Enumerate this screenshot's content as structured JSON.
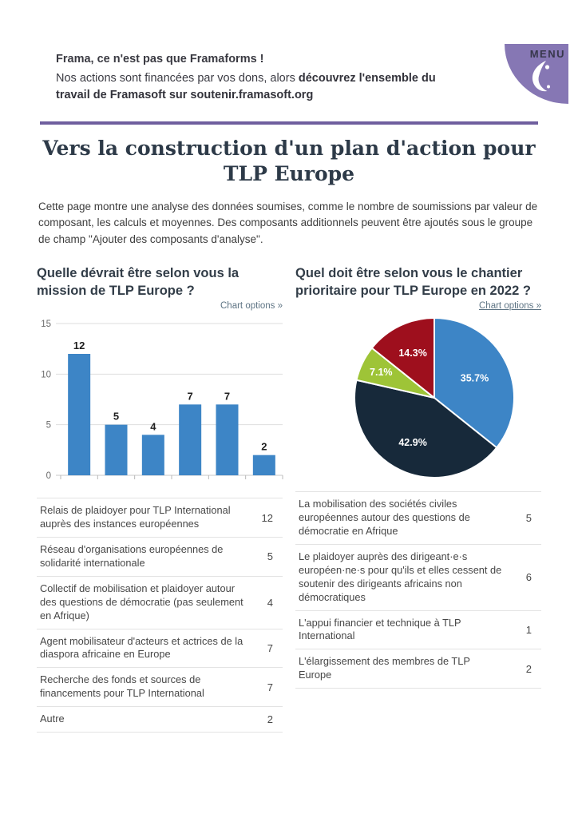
{
  "header": {
    "tagline_bold": "Frama, ce n'est pas que Framaforms !",
    "tagline2_normal": "Nos actions sont financées par vos dons, alors ",
    "tagline2_bold": "découvrez l'ensemble du travail de Framasoft sur soutenir.framasoft.org",
    "menu_label": "MENU",
    "menu_color": "#8677b4",
    "divider_color": "#6f5f9e"
  },
  "page": {
    "title": "Vers la construction d'un plan d'action pour TLP Europe",
    "description": "Cette page montre une analyse des données soumises, comme le nombre de soumissions par valeur de composant, les calculs et moyennes. Des composants additionnels peuvent être ajoutés sous le groupe de champ \"Ajouter des composants d'analyse\"."
  },
  "left_panel": {
    "question": "Quelle dévrait être selon vous la mission de TLP Europe ?",
    "chart_options_label": "Chart options »",
    "table": [
      {
        "label": "Relais de plaidoyer pour TLP International auprès des instances européennes",
        "value": 12
      },
      {
        "label": "Réseau d'organisations européennes de solidarité internationale",
        "value": 5
      },
      {
        "label": "Collectif de mobilisation et plaidoyer autour des questions de démocratie (pas seulement en Afrique)",
        "value": 4
      },
      {
        "label": "Agent mobilisateur d'acteurs et actrices de la diaspora africaine en Europe",
        "value": 7
      },
      {
        "label": "Recherche des fonds et sources de financements pour TLP International",
        "value": 7
      },
      {
        "label": "Autre",
        "value": 2
      }
    ]
  },
  "right_panel": {
    "question": "Quel doit être selon vous le chantier prioritaire pour TLP Europe en 2022 ?",
    "chart_options_label": "Chart options »",
    "table": [
      {
        "label": "La mobilisation des sociétés civiles européennes autour des questions de démocratie en Afrique",
        "value": 5
      },
      {
        "label": "Le plaidoyer auprès des dirigeant·e·s européen·ne·s pour qu'ils et elles cessent de soutenir des dirigeants africains non démocratiques",
        "value": 6
      },
      {
        "label": "L'appui financier et technique à TLP International",
        "value": 1
      },
      {
        "label": "L'élargissement des membres de TLP Europe",
        "value": 2
      }
    ]
  },
  "chart_data": [
    {
      "type": "bar",
      "title": "Quelle dévrait être selon vous la mission de TLP Europe ?",
      "categories": [
        "Relais de plaidoyer pour TLP International auprès des instances européennes",
        "Réseau d'organisations européennes de solidarité internationale",
        "Collectif de mobilisation et plaidoyer autour des questions de démocratie (pas seulement en Afrique)",
        "Agent mobilisateur d'acteurs et actrices de la diaspora africaine en Europe",
        "Recherche des fonds et sources de financements pour TLP International",
        "Autre"
      ],
      "values": [
        12,
        5,
        4,
        7,
        7,
        2
      ],
      "xlabel": "",
      "ylabel": "",
      "ylim": [
        0,
        15
      ],
      "yticks": [
        0,
        5,
        10,
        15
      ],
      "grid": true,
      "value_labels": true,
      "bar_color": "#3d85c6",
      "legend": "none"
    },
    {
      "type": "pie",
      "title": "Quel doit être selon vous le chantier prioritaire pour TLP Europe en 2022 ?",
      "labels": [
        "La mobilisation des sociétés civiles européennes autour des questions de démocratie en Afrique",
        "Le plaidoyer auprès des dirigeant·e·s européen·ne·s pour qu'ils et elles cessent de soutenir des dirigeants africains non démocratiques",
        "L'appui financier et technique à TLP International",
        "L'élargissement des membres de TLP Europe"
      ],
      "values": [
        5,
        6,
        1,
        2
      ],
      "percent_labels": [
        "35.7%",
        "42.9%",
        "7.1%",
        "14.3%"
      ],
      "colors": [
        "#3d85c6",
        "#17293a",
        "#9ec437",
        "#9e0f1d"
      ],
      "start_angle_deg": -90,
      "direction": "clockwise",
      "legend": "none"
    }
  ]
}
